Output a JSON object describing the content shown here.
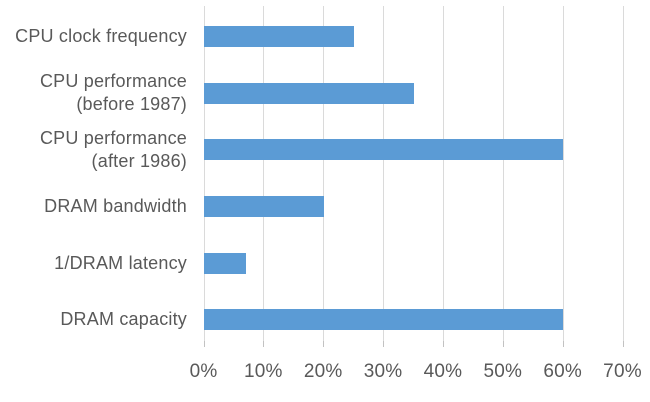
{
  "chart_data": {
    "type": "bar",
    "orientation": "horizontal",
    "title": "",
    "categories": [
      "CPU  clock frequency",
      "CPU performance\n(before 1987)",
      "CPU performance\n(after 1986)",
      "DRAM bandwidth",
      "1/DRAM latency",
      "DRAM capacity"
    ],
    "values": [
      25,
      35,
      60,
      20,
      7,
      60
    ],
    "unit": "%",
    "x_ticks": [
      "0%",
      "10%",
      "20%",
      "30%",
      "40%",
      "50%",
      "60%",
      "70%"
    ],
    "x_tick_values": [
      0,
      10,
      20,
      30,
      40,
      50,
      60,
      70
    ],
    "xlim": [
      0,
      70
    ],
    "xlabel": "",
    "ylabel": "",
    "grid": true,
    "legend": false,
    "colors": {
      "bar": "#5b9bd5",
      "gridline": "#dadada",
      "tick_mark": "#c2c2c2",
      "text": "#595959"
    }
  }
}
